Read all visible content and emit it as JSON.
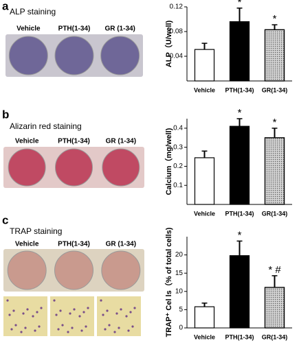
{
  "panels": [
    {
      "letter": "a",
      "title": "ALP staining",
      "wells": [
        "Vehicle",
        "PTH(1-34)",
        "GR (1-34)"
      ]
    },
    {
      "letter": "b",
      "title": "Alizarin red staining",
      "wells": [
        "Vehicle",
        "PTH(1-34)",
        "GR (1-34)"
      ]
    },
    {
      "letter": "c",
      "title": "TRAP staining",
      "wells": [
        "Vehicle",
        "PTH(1-34)",
        "GR (1-34)"
      ]
    }
  ],
  "chart_data": [
    {
      "type": "bar",
      "y_label": "ALP（U/well)",
      "categories": [
        "Vehicle",
        "PTH(1-34)",
        "GR(1-34)"
      ],
      "values": [
        0.051,
        0.096,
        0.083
      ],
      "errors": [
        0.01,
        0.022,
        0.008
      ],
      "annotations": [
        null,
        "*",
        "*"
      ],
      "colors": [
        "#ffffff",
        "#000000",
        "#d4d4d4"
      ],
      "ylim": [
        0,
        0.12
      ],
      "yticks": [
        0.04,
        0.08,
        0.12
      ]
    },
    {
      "type": "bar",
      "y_label": "Calcium（mg/well)",
      "categories": [
        "Vehicle",
        "PTH(1-34)",
        "GR(1-34)"
      ],
      "values": [
        0.245,
        0.41,
        0.35
      ],
      "errors": [
        0.035,
        0.04,
        0.05
      ],
      "annotations": [
        null,
        "*",
        "*"
      ],
      "colors": [
        "#ffffff",
        "#000000",
        "#d4d4d4"
      ],
      "ylim": [
        0,
        0.45
      ],
      "yticks": [
        0.1,
        0.2,
        0.3,
        0.4
      ]
    },
    {
      "type": "bar",
      "y_label": "TRAP⁺ Cel ls（% of total cells)",
      "categories": [
        "Vehicle",
        "PTH(1-34)",
        "GR(1-34)"
      ],
      "values": [
        5.8,
        19.8,
        11.1
      ],
      "errors": [
        1,
        4,
        3.2
      ],
      "annotations": [
        null,
        "*",
        "* #"
      ],
      "colors": [
        "#ffffff",
        "#000000",
        "#d4d4d4"
      ],
      "ylim": [
        0,
        25
      ],
      "yticks": [
        0,
        5,
        10,
        15,
        20
      ]
    }
  ]
}
